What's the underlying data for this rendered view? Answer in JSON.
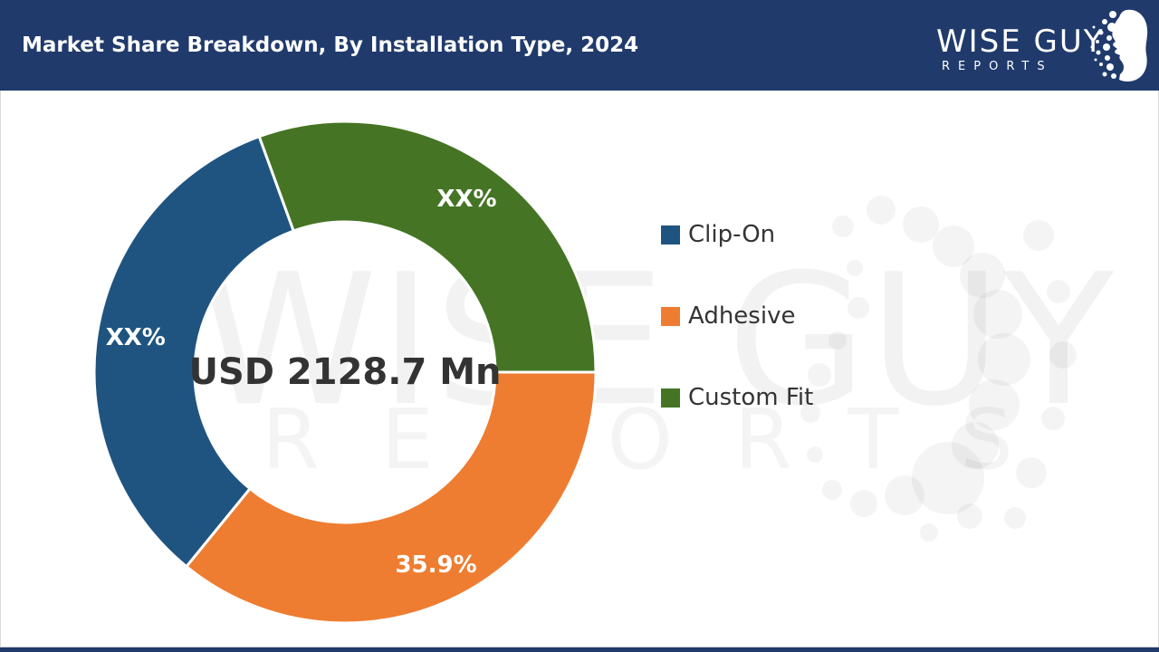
{
  "header": {
    "title": "Market Share Breakdown, By Installation Type, 2024",
    "logo": {
      "line1": "WISE GUY",
      "line2": "REPORTS"
    }
  },
  "colors": {
    "header_bg": "#203a6c",
    "footer_bg": "#203a6c",
    "clip_on": "#1f5480",
    "adhesive": "#ee7d31",
    "custom_fit": "#457524",
    "percent_label": "#ffffff",
    "center_text": "#333333"
  },
  "watermark": {
    "line1": "WISE GUY",
    "line2": "REPORTS"
  },
  "chart_data": {
    "type": "pie",
    "subtype": "donut",
    "title": "Market Share Breakdown, By Installation Type, 2024",
    "center_label": "USD 2128.7 Mn",
    "total_value_usd_mn": 2128.7,
    "legend_position": "right",
    "inner_radius_ratio": 0.6,
    "slices": [
      {
        "name": "Clip-On",
        "value_pct": 33.5,
        "display_label": "XX%",
        "color": "#1f5480",
        "start_deg": 219.2,
        "end_deg": 340.0
      },
      {
        "name": "Adhesive",
        "value_pct": 35.9,
        "display_label": "35.9%",
        "color": "#ee7d31",
        "start_deg": 90.0,
        "end_deg": 219.2
      },
      {
        "name": "Custom Fit",
        "value_pct": 30.6,
        "display_label": "XX%",
        "color": "#457524",
        "start_deg": 340.0,
        "end_deg": 450.0
      }
    ]
  }
}
